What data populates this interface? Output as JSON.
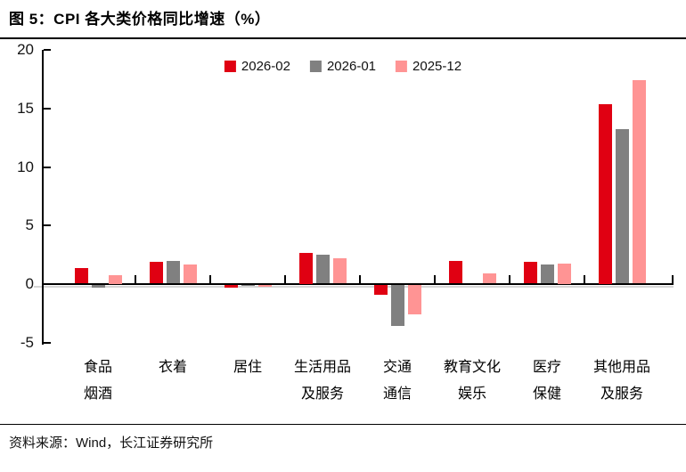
{
  "page": {
    "title": "图 5：CPI 各大类价格同比增速（%）",
    "source": "资料来源：Wind，长江证券研究所"
  },
  "chart_data": {
    "type": "bar",
    "title": "图 5：CPI 各大类价格同比增速（%）",
    "xlabel": "",
    "ylabel": "",
    "ylim": [
      -5,
      20
    ],
    "yticks": [
      20,
      15,
      10,
      5,
      0,
      -5
    ],
    "grid": false,
    "legend_position": "top-center",
    "categories": [
      [
        "食品",
        "烟酒"
      ],
      [
        "衣着"
      ],
      [
        "居住"
      ],
      [
        "生活用品",
        "及服务"
      ],
      [
        "交通",
        "通信"
      ],
      [
        "教育文化",
        "娱乐"
      ],
      [
        "医疗",
        "保健"
      ],
      [
        "其他用品",
        "及服务"
      ]
    ],
    "series": [
      {
        "name": "2026-02",
        "color": "#E00012",
        "values": [
          1.4,
          1.9,
          -0.3,
          2.7,
          -0.9,
          2.0,
          1.9,
          15.4
        ]
      },
      {
        "name": "2026-01",
        "color": "#808080",
        "values": [
          -0.3,
          2.0,
          -0.1,
          2.5,
          -3.6,
          0.0,
          1.7,
          13.2
        ]
      },
      {
        "name": "2025-12",
        "color": "#FF9494",
        "values": [
          0.8,
          1.7,
          -0.2,
          2.2,
          -2.6,
          0.9,
          1.8,
          17.4
        ]
      }
    ],
    "source": "资料来源：Wind，长江证券研究所"
  }
}
